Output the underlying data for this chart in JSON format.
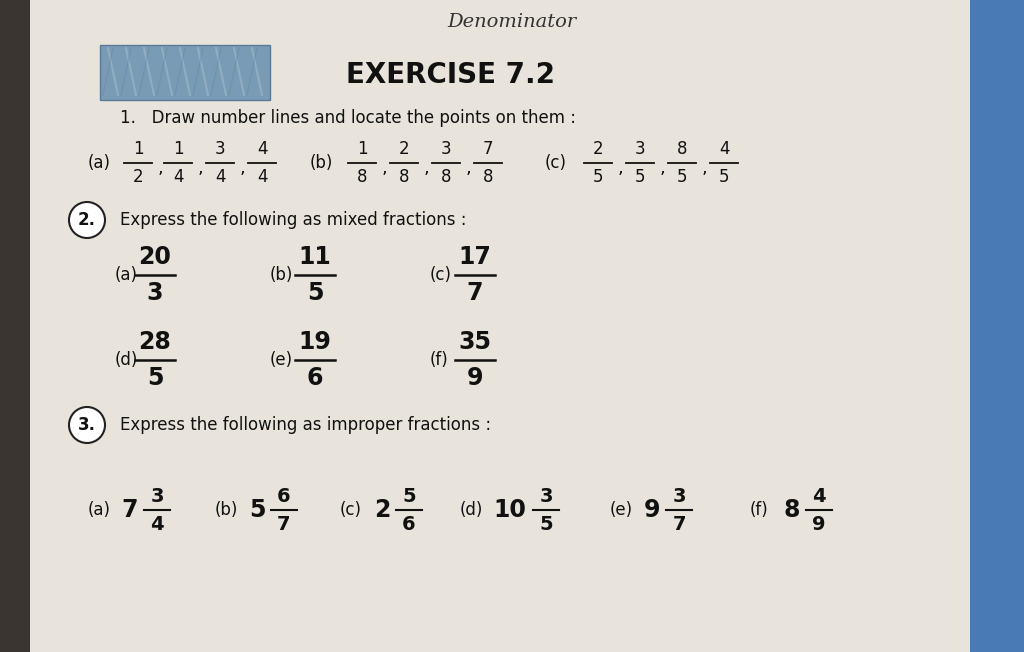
{
  "title": "Denominator",
  "exercise": "EXERCISE 7.2",
  "bg_color": "#b0a898",
  "page_color": "#e8e4dc",
  "text_color": "#1a1a1a",
  "q1_text": "1.   Draw number lines and locate the points on them :",
  "q1a_label": "(a)",
  "q1a_fracs": [
    [
      "1",
      "2"
    ],
    [
      "1",
      "4"
    ],
    [
      "3",
      "4"
    ],
    [
      "4",
      "4"
    ]
  ],
  "q1b_label": "(b)",
  "q1b_fracs": [
    [
      "1",
      "8"
    ],
    [
      "2",
      "8"
    ],
    [
      "3",
      "8"
    ],
    [
      "7",
      "8"
    ]
  ],
  "q1c_label": "(c)",
  "q1c_fracs": [
    [
      "2",
      "5"
    ],
    [
      "3",
      "5"
    ],
    [
      "8",
      "5"
    ],
    [
      "4",
      "5"
    ]
  ],
  "q2_num": "2.",
  "q2_text": "Express the following as mixed fractions :",
  "q2_items": [
    [
      "(a)",
      "20",
      "3"
    ],
    [
      "(b)",
      "11",
      "5"
    ],
    [
      "(c)",
      "17",
      "7"
    ],
    [
      "(d)",
      "28",
      "5"
    ],
    [
      "(e)",
      "19",
      "6"
    ],
    [
      "(f)",
      "35",
      "9"
    ]
  ],
  "q3_num": "3.",
  "q3_text": "Express the following as improper fractions :",
  "q3_items": [
    [
      "(a)",
      "7",
      "3",
      "4"
    ],
    [
      "(b)",
      "5",
      "6",
      "7"
    ],
    [
      "(c)",
      "2",
      "5",
      "6"
    ],
    [
      "(d)",
      "10",
      "3",
      "5"
    ],
    [
      "(e)",
      "9",
      "3",
      "7"
    ],
    [
      "(f)",
      "8",
      "4",
      "9"
    ]
  ],
  "right_strip_color": "#4a7ab5",
  "left_strip_color": "#2a2a2a",
  "header_box_color": "#7a9bb5",
  "circle_color": "#ffffff"
}
